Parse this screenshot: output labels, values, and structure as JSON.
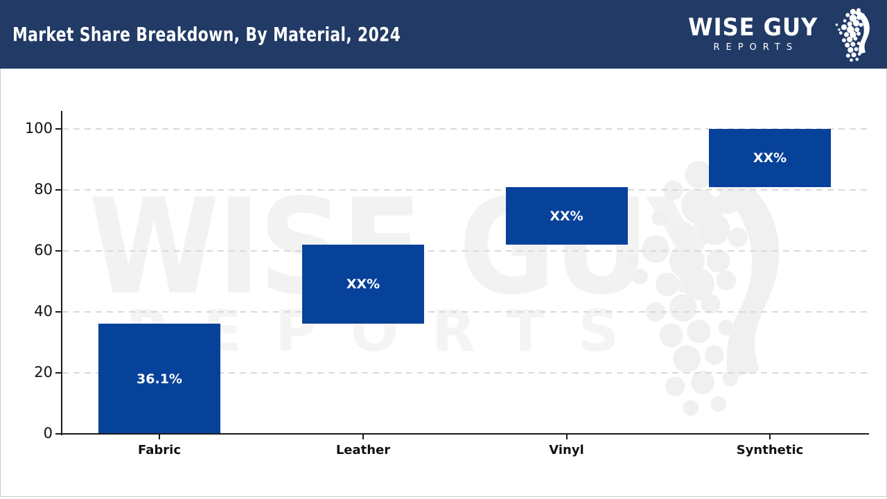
{
  "header": {
    "title": "Market Share Breakdown, By Material, 2024",
    "bg_color": "#213a66",
    "logo": {
      "line1": "WISE GUY",
      "line2": "REPORTS"
    }
  },
  "watermark": {
    "line1": "WISE GUY",
    "line2": "REPORTS"
  },
  "chart_data": {
    "type": "bar",
    "subtype": "waterfall",
    "title": "Market Share Breakdown, By Material, 2024",
    "categories": [
      "Fabric",
      "Leather",
      "Vinyl",
      "Synthetic"
    ],
    "segments": [
      {
        "category": "Fabric",
        "start": 0,
        "end": 36.1,
        "label": "36.1%"
      },
      {
        "category": "Leather",
        "start": 36.1,
        "end": 62.1,
        "label": "XX%"
      },
      {
        "category": "Vinyl",
        "start": 62.1,
        "end": 80.8,
        "label": "XX%"
      },
      {
        "category": "Synthetic",
        "start": 80.8,
        "end": 100,
        "label": "XX%"
      }
    ],
    "y_ticks": [
      0,
      20,
      40,
      60,
      80,
      100
    ],
    "ylim": [
      0,
      106
    ],
    "xlabel": "",
    "ylabel": "",
    "grid": "dashed-horizontal",
    "legend": "none",
    "bar_color": "#07429a",
    "bar_label_color": "#ffffff",
    "axis_color": "#1a1a1a",
    "grid_color": "#d9d9d9"
  }
}
